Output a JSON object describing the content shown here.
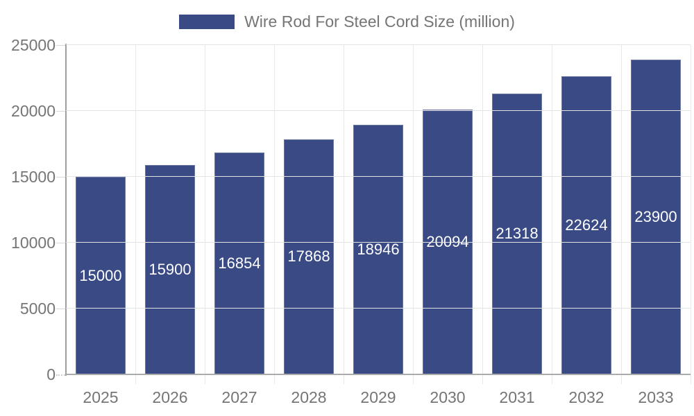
{
  "chart_data": {
    "type": "bar",
    "title": "Wire Rod For Steel Cord Size (million)",
    "categories": [
      "2025",
      "2026",
      "2027",
      "2028",
      "2029",
      "2030",
      "2031",
      "2032",
      "2033"
    ],
    "values": [
      15000,
      15900,
      16854,
      17868,
      18946,
      20094,
      21318,
      22624,
      23900
    ],
    "y_ticks": [
      0,
      5000,
      10000,
      15000,
      20000,
      25000
    ],
    "ylim": [
      0,
      25000
    ],
    "xlabel": "",
    "ylabel": "",
    "grid": true,
    "legend_position": "top-center",
    "bar_labels_inside": true,
    "colors": {
      "bar": "#394a85",
      "bar_label": "#ffffff",
      "axis_text": "#757575",
      "gridline": "#e3e3e3",
      "axis_line": "#9e9e9e",
      "background": "#ffffff"
    }
  }
}
